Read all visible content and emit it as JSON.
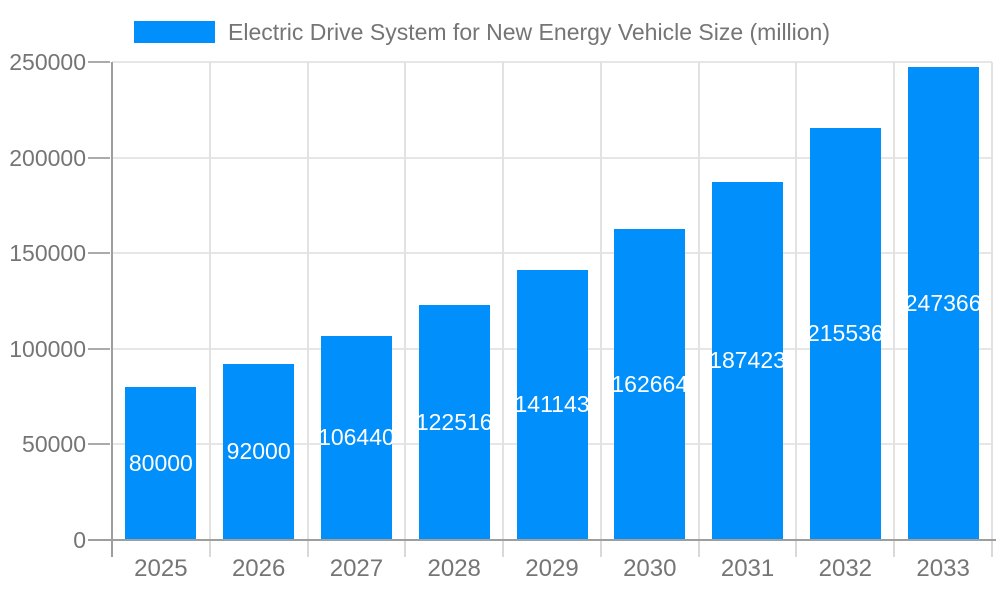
{
  "colors": {
    "bar": "#008FFB",
    "axis_text": "#757575",
    "value_text": "#ffffff",
    "grid_line": "#e6e6e6",
    "vertical_grid_line": "#e2e2e2",
    "axis_line": "#9e9e9e",
    "minor_tick": "#d9d9d9",
    "y_tick_dash": "#ababab",
    "background": "#ffffff"
  },
  "chart_data": {
    "type": "bar",
    "title": "Electric Drive System for New Energy Vehicle Size (million)",
    "categories": [
      "2025",
      "2026",
      "2027",
      "2028",
      "2029",
      "2030",
      "2031",
      "2032",
      "2033"
    ],
    "series": [
      {
        "name": "Electric Drive System for New Energy Vehicle Size (million)",
        "values": [
          80000,
          92000,
          106440,
          122516,
          141143,
          162664,
          187423,
          215536,
          247366
        ]
      }
    ],
    "xlabel": "",
    "ylabel": "",
    "ylim": [
      0,
      250000
    ],
    "y_ticks": [
      0,
      50000,
      100000,
      150000,
      200000,
      250000
    ],
    "grid": true,
    "legend_position": "top",
    "value_label_position": "inside-center"
  }
}
